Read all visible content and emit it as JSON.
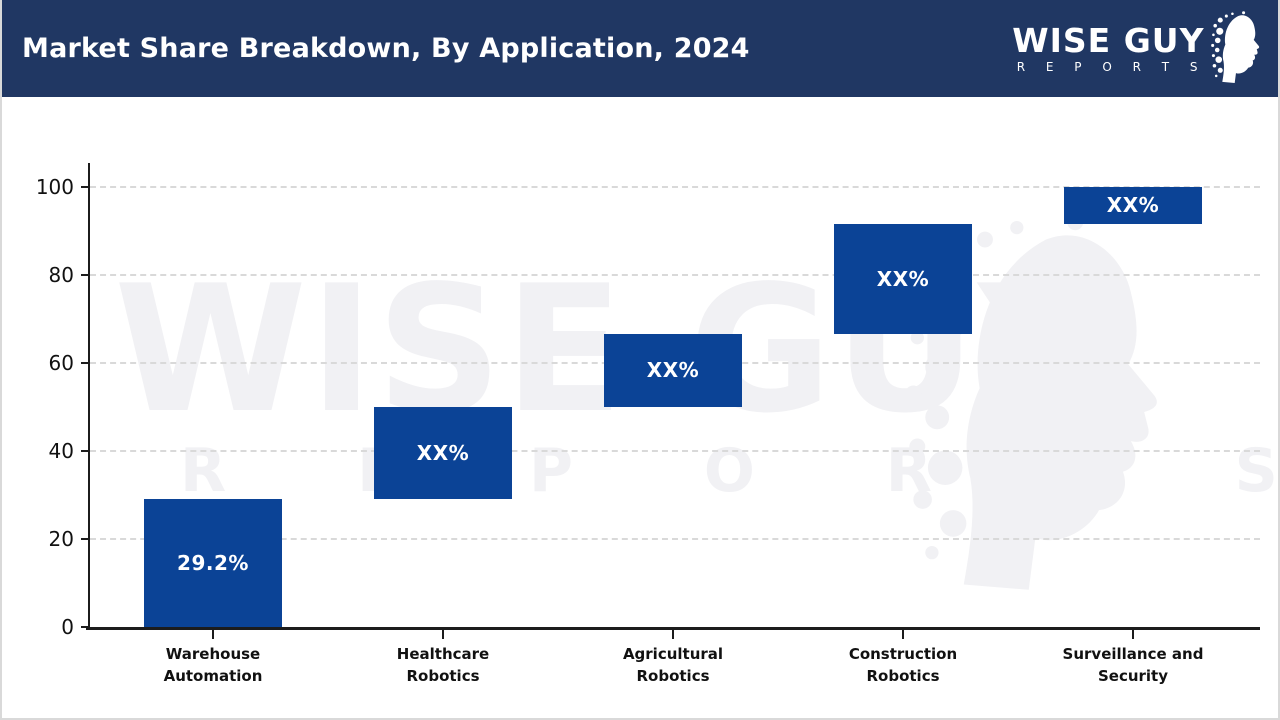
{
  "header": {
    "title": "Market Share Breakdown, By Application, 2024",
    "logo": {
      "line1": "WISE GUY",
      "line2": "R E P O R T S",
      "icon": "dotted-head-profile-icon"
    }
  },
  "watermark": {
    "line1": "WISE GUY",
    "line2": "R E P O R T S",
    "icon": "dotted-head-profile-icon"
  },
  "chart_data": {
    "type": "bar",
    "variant": "floating-segment waterfall breakdown",
    "title": "Market Share Breakdown, By Application, 2024",
    "categories": [
      "Warehouse Automation",
      "Healthcare Robotics",
      "Agricultural Robotics",
      "Construction Robotics",
      "Surveillance and Security"
    ],
    "x_tick_label_lines": [
      [
        "Warehouse",
        "Automation"
      ],
      [
        "Healthcare",
        "Robotics"
      ],
      [
        "Agricultural",
        "Robotics"
      ],
      [
        "Construction",
        "Robotics"
      ],
      [
        "Surveillance and",
        "Security"
      ]
    ],
    "segments": [
      {
        "category": "Warehouse Automation",
        "from": 0,
        "to": 29.2,
        "value": 29.2,
        "label": "29.2%"
      },
      {
        "category": "Healthcare Robotics",
        "from": 29.2,
        "to": 50.0,
        "value": 20.8,
        "label": "XX%"
      },
      {
        "category": "Agricultural Robotics",
        "from": 50.0,
        "to": 66.7,
        "value": 16.7,
        "label": "XX%"
      },
      {
        "category": "Construction Robotics",
        "from": 66.7,
        "to": 91.7,
        "value": 25.0,
        "label": "XX%"
      },
      {
        "category": "Surveillance and Security",
        "from": 91.7,
        "to": 100.0,
        "value": 8.3,
        "label": "XX%"
      }
    ],
    "xlabel": "",
    "ylabel": "",
    "ylim": [
      0,
      100
    ],
    "yticks": [
      0,
      20,
      40,
      60,
      80,
      100
    ],
    "grid": {
      "axis": "y",
      "style": "dashed",
      "color": "#d9d9d9"
    },
    "legend_position": "none",
    "bar_color": "#0b4396",
    "bar_label_color": "#ffffff"
  },
  "colors": {
    "header_bg": "#203763",
    "header_text": "#ffffff",
    "bar": "#0b4396",
    "axis": "#1c1c1c",
    "grid": "#d9d9d9",
    "watermark": "#f1f1f4",
    "background": "#ffffff",
    "border": "#d9d9d9"
  }
}
